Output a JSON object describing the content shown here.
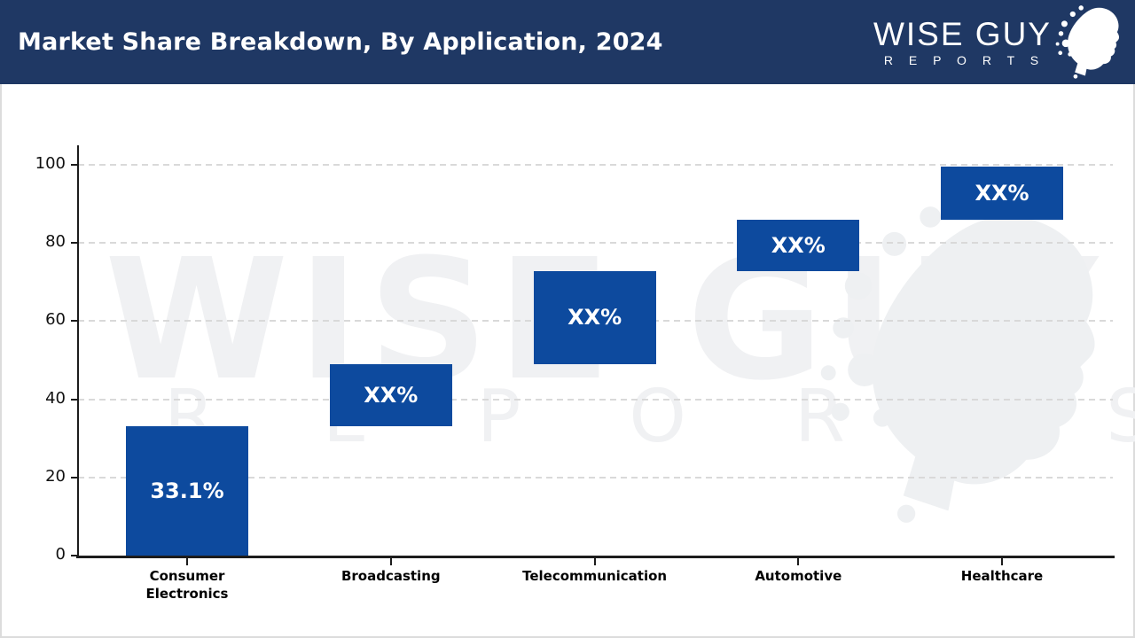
{
  "header": {
    "title": "Market Share Breakdown, By Application, 2024",
    "bg_color": "#1f3864",
    "logo": {
      "wordmark": "WISE GUY",
      "subtext": "R E P O R T S",
      "head_icon": "dotted-head-profile"
    }
  },
  "watermark": {
    "line1": "WISE GUY",
    "line2": "R E P O R T S",
    "head_icon": "dotted-head-profile"
  },
  "chart_data": {
    "type": "bar",
    "subtype": "waterfall",
    "title": "Market Share Breakdown, By Application, 2024",
    "categories": [
      "Consumer\nElectronics",
      "Broadcasting",
      "Telecommunication",
      "Automotive",
      "Healthcare"
    ],
    "segments": [
      {
        "category": "Consumer Electronics",
        "start": 0,
        "end": 33.1,
        "label": "33.1%"
      },
      {
        "category": "Broadcasting",
        "start": 33.1,
        "end": 49,
        "label": "XX%"
      },
      {
        "category": "Telecommunication",
        "start": 49,
        "end": 72.9,
        "label": "XX%"
      },
      {
        "category": "Automotive",
        "start": 72.9,
        "end": 86,
        "label": "XX%"
      },
      {
        "category": "Healthcare",
        "start": 86,
        "end": 99.5,
        "label": "XX%"
      }
    ],
    "ylim": [
      0,
      100
    ],
    "yticks": [
      0,
      20,
      40,
      60,
      80,
      100
    ],
    "xlabel": "",
    "ylabel": "",
    "legend": "none",
    "grid": "horizontal-dashed",
    "colors": {
      "bar": "#0d4a9e",
      "bar_label": "#ffffff",
      "axis": "#1c1c1c",
      "gridline": "#d9d9d9",
      "tick_label": "#111111",
      "watermark": "#f0f1f3"
    }
  }
}
